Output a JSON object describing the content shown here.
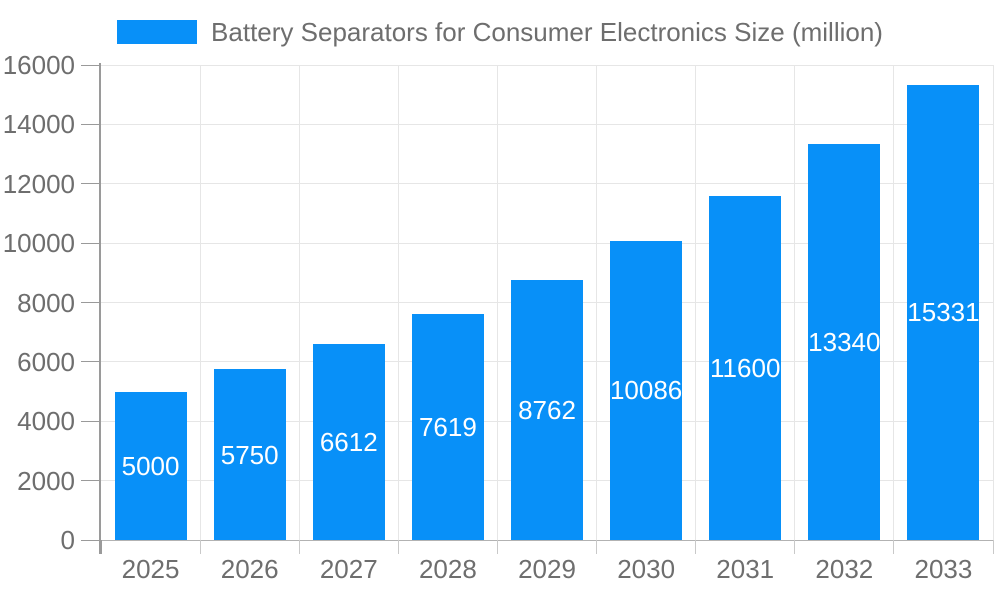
{
  "chart_data": {
    "type": "bar",
    "title": "Battery Separators for Consumer Electronics Size (million)",
    "series_name": "Battery Separators for Consumer Electronics Size (million)",
    "categories": [
      "2025",
      "2026",
      "2027",
      "2028",
      "2029",
      "2030",
      "2031",
      "2032",
      "2033"
    ],
    "values": [
      5000,
      5750,
      6612,
      7619,
      8762,
      10086,
      11600,
      13340,
      15331
    ],
    "xlabel": "",
    "ylabel": "",
    "ylim": [
      0,
      16000
    ],
    "ytick_step": 2000,
    "ytick_labels": [
      "0",
      "2000",
      "4000",
      "6000",
      "8000",
      "10000",
      "12000",
      "14000",
      "16000"
    ],
    "grid": true,
    "legend_position": "top",
    "data_labels": "inside-center",
    "colors": {
      "bar": "#0890F8",
      "bar_label": "#FFFFFF",
      "axis_text": "#6E6E6E",
      "axis_line": "#9A9A9A",
      "gridline": "#E6E6E6",
      "baseline": "#B2B2B2",
      "x_tick": "#C9C9C9",
      "background": "#FFFFFF"
    }
  }
}
